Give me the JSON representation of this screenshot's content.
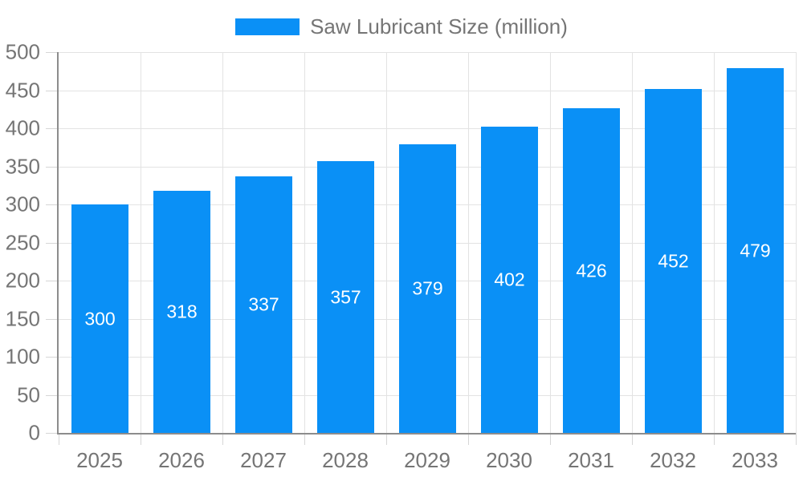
{
  "legend": {
    "label": "Saw Lubricant Size (million)"
  },
  "chart_data": {
    "type": "bar",
    "title": "Saw Lubricant Size (million)",
    "categories": [
      "2025",
      "2026",
      "2027",
      "2028",
      "2029",
      "2030",
      "2031",
      "2032",
      "2033"
    ],
    "values": [
      300,
      318,
      337,
      357,
      379,
      402,
      426,
      452,
      479
    ],
    "xlabel": "",
    "ylabel": "",
    "ylim": [
      0,
      500
    ],
    "yticks": [
      0,
      50,
      100,
      150,
      200,
      250,
      300,
      350,
      400,
      450,
      500
    ],
    "grid": true,
    "legend_position": "top-center",
    "colors": {
      "bar": "#0a90f6",
      "value_label": "#ffffff",
      "axis": "#8c8c8c",
      "grid": "#e3e3e3",
      "tick": "#d6d6d6",
      "text": "#757575"
    }
  }
}
